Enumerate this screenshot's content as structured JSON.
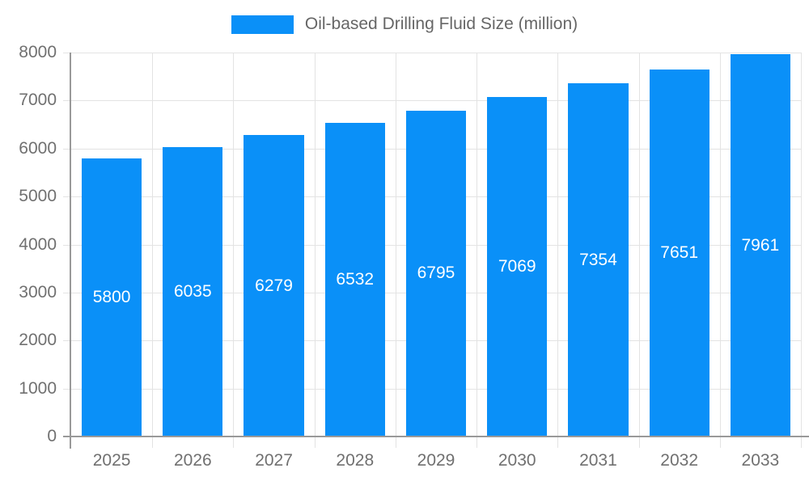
{
  "chart_data": {
    "type": "bar",
    "title": "Oil-based Drilling Fluid Size (million)",
    "legend": {
      "label": "Oil-based Drilling Fluid Size (million)",
      "position": "top"
    },
    "categories": [
      "2025",
      "2026",
      "2027",
      "2028",
      "2029",
      "2030",
      "2031",
      "2032",
      "2033"
    ],
    "values": [
      5800,
      6035,
      6279,
      6532,
      6795,
      7069,
      7354,
      7651,
      7961
    ],
    "xlabel": "",
    "ylabel": "",
    "ylim": [
      0,
      8000
    ],
    "ytick_step": 1000,
    "yticks": [
      "0",
      "1000",
      "2000",
      "3000",
      "4000",
      "5000",
      "6000",
      "7000",
      "8000"
    ],
    "grid": true,
    "bar_labels_inside": true,
    "colors": {
      "bar": "#0a90f8",
      "bar_label": "#ffffff",
      "axis_label": "#707070",
      "legend_text": "#666666",
      "gridline": "#e3e3e3",
      "axis_line": "#999999",
      "background": "#ffffff"
    }
  }
}
